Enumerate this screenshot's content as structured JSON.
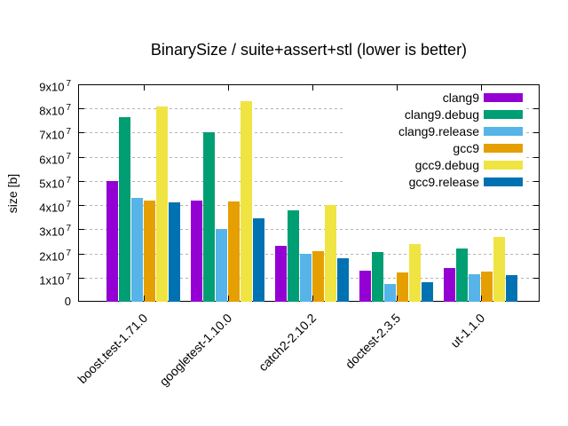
{
  "chart_data": {
    "type": "bar",
    "title": "BinarySize / suite+assert+stl (lower is better)",
    "xlabel": "",
    "ylabel": "size [b]",
    "categories": [
      "boost.test-1.71.0",
      "googletest-1.10.0",
      "catch2-2.10.2",
      "doctest-2.3.5",
      "ut-1.1.0"
    ],
    "series": [
      {
        "name": "clang9",
        "color": "#9400d3",
        "values": [
          50000000,
          42000000,
          23000000,
          13000000,
          14000000
        ]
      },
      {
        "name": "clang9.debug",
        "color": "#009e73",
        "values": [
          76500000,
          70000000,
          38000000,
          20500000,
          22000000
        ]
      },
      {
        "name": "clang9.release",
        "color": "#56b4e9",
        "values": [
          43000000,
          30000000,
          20000000,
          7500000,
          11500000
        ]
      },
      {
        "name": "gcc9",
        "color": "#e69f00",
        "values": [
          42000000,
          41500000,
          21000000,
          12000000,
          12500000
        ]
      },
      {
        "name": "gcc9.debug",
        "color": "#f0e442",
        "values": [
          81000000,
          83000000,
          40000000,
          24000000,
          27000000
        ]
      },
      {
        "name": "gcc9.release",
        "color": "#0072b2",
        "values": [
          41000000,
          34500000,
          18000000,
          8000000,
          11000000
        ]
      }
    ],
    "ylim": [
      0,
      90000000
    ],
    "ytick_step": 10000000,
    "ytick_labels": [
      "0",
      "1x10^7",
      "2x10^7",
      "3x10^7",
      "4x10^7",
      "5x10^7",
      "6x10^7",
      "7x10^7",
      "8x10^7",
      "9x10^7"
    ],
    "grid": true,
    "grid_color": "#b2b2b2",
    "legend_position": "top-right",
    "text_color": "#000000"
  }
}
